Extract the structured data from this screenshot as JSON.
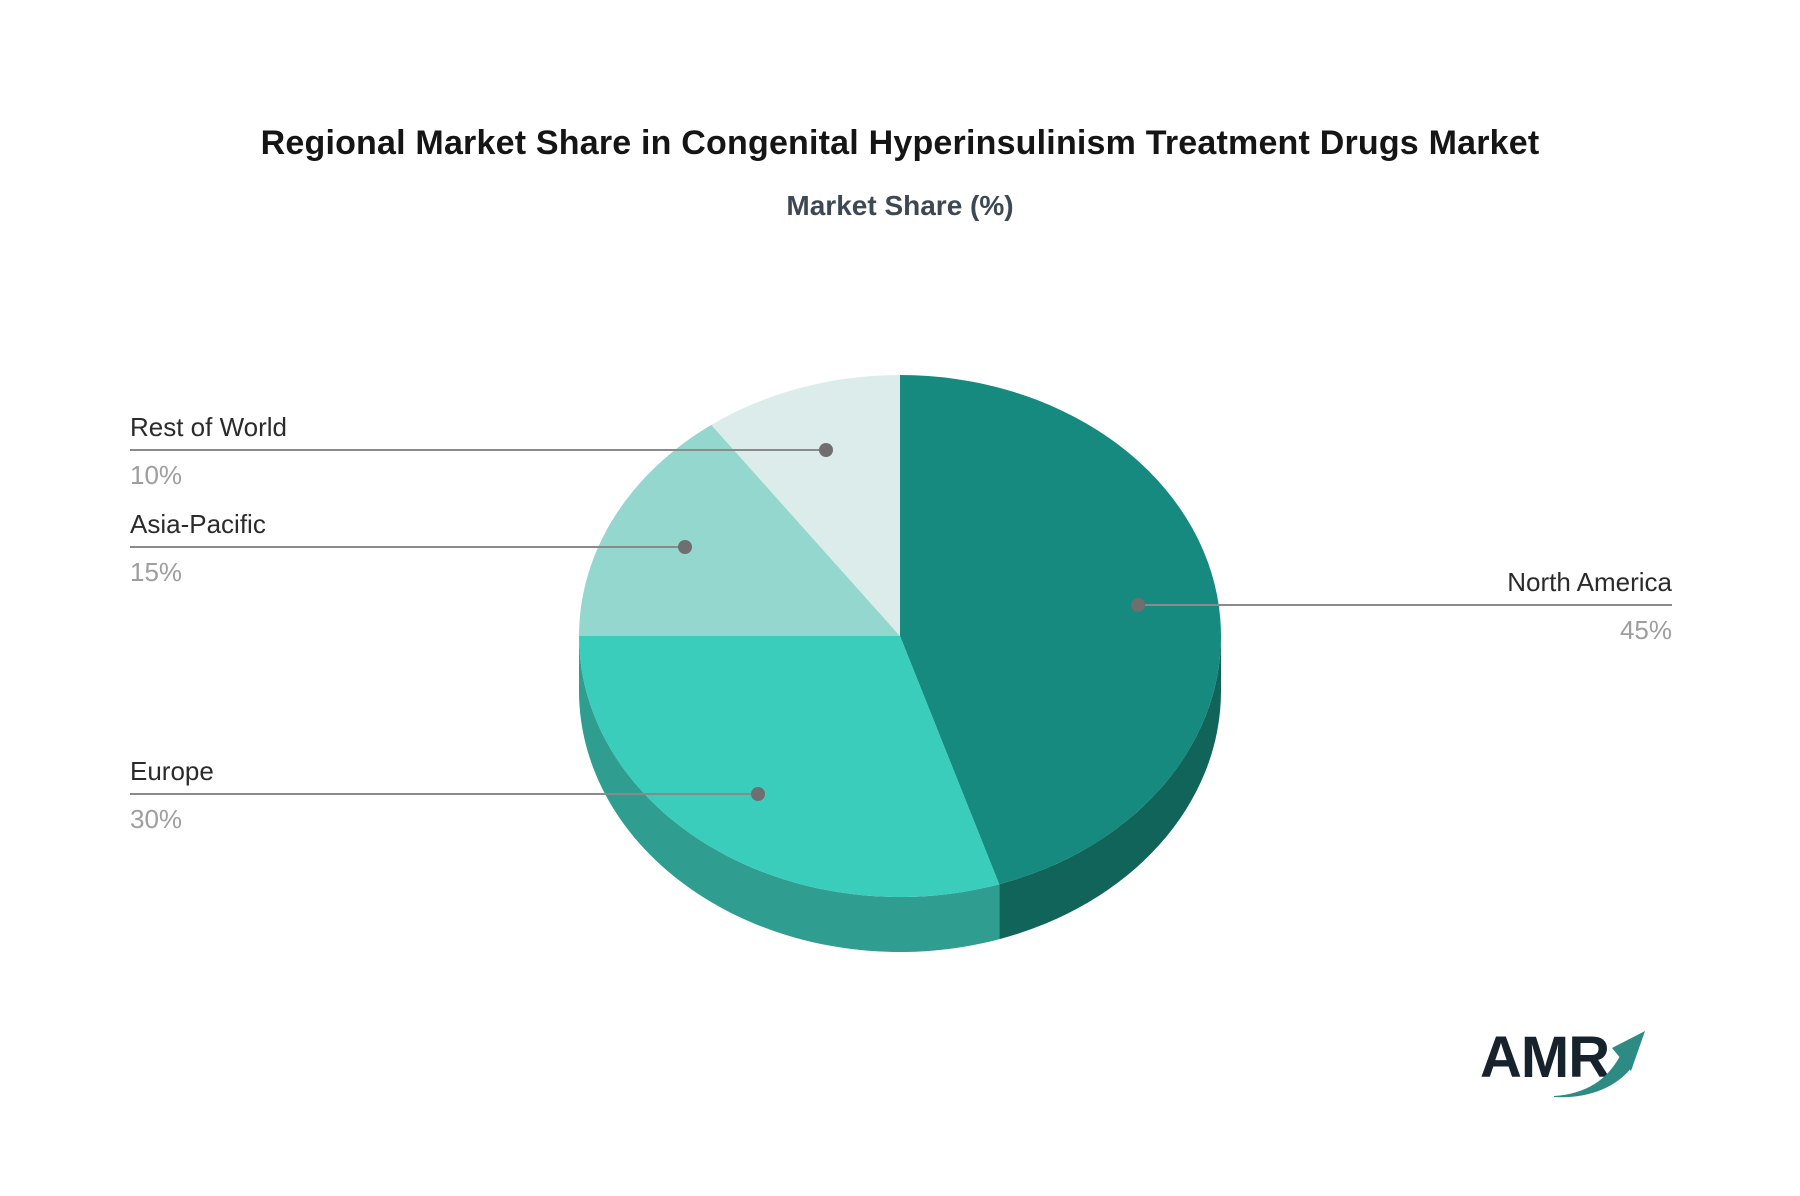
{
  "header": {
    "title": "Regional Market Share in Congenital Hyperinsulinism Treatment Drugs Market",
    "subtitle": "Market Share (%)"
  },
  "chart_data": {
    "type": "pie",
    "title": "Regional Market Share in Congenital Hyperinsulinism Treatment Drugs Market",
    "subtitle": "Market Share (%)",
    "unit": "%",
    "style": "3d-pie",
    "rotation": "clockwise-from-top",
    "legend_position": "outside-leader-lines",
    "slices": [
      {
        "label": "North America",
        "value": 45,
        "color": "#168a7e",
        "side_color": "#11645a",
        "label_side": "right"
      },
      {
        "label": "Europe",
        "value": 30,
        "color": "#3acdbb",
        "side_color": "#2f9d90",
        "label_side": "left"
      },
      {
        "label": "Asia-Pacific",
        "value": 15,
        "color": "#94d7cf",
        "label_side": "left"
      },
      {
        "label": "Rest of World",
        "value": 10,
        "color": "#dcecea",
        "label_side": "left"
      }
    ]
  },
  "logo": {
    "text": "AMR"
  },
  "colors": {
    "background": "#ffffff",
    "title": "#151515",
    "subtitle": "#3d4854",
    "label_text": "#2b2b2b",
    "pct_text": "#9e9e9e",
    "leader_line": "#8a8a8a",
    "leader_dot": "#6f6f6f",
    "logo_text": "#17232c",
    "logo_arrow": "#2e8b84"
  }
}
